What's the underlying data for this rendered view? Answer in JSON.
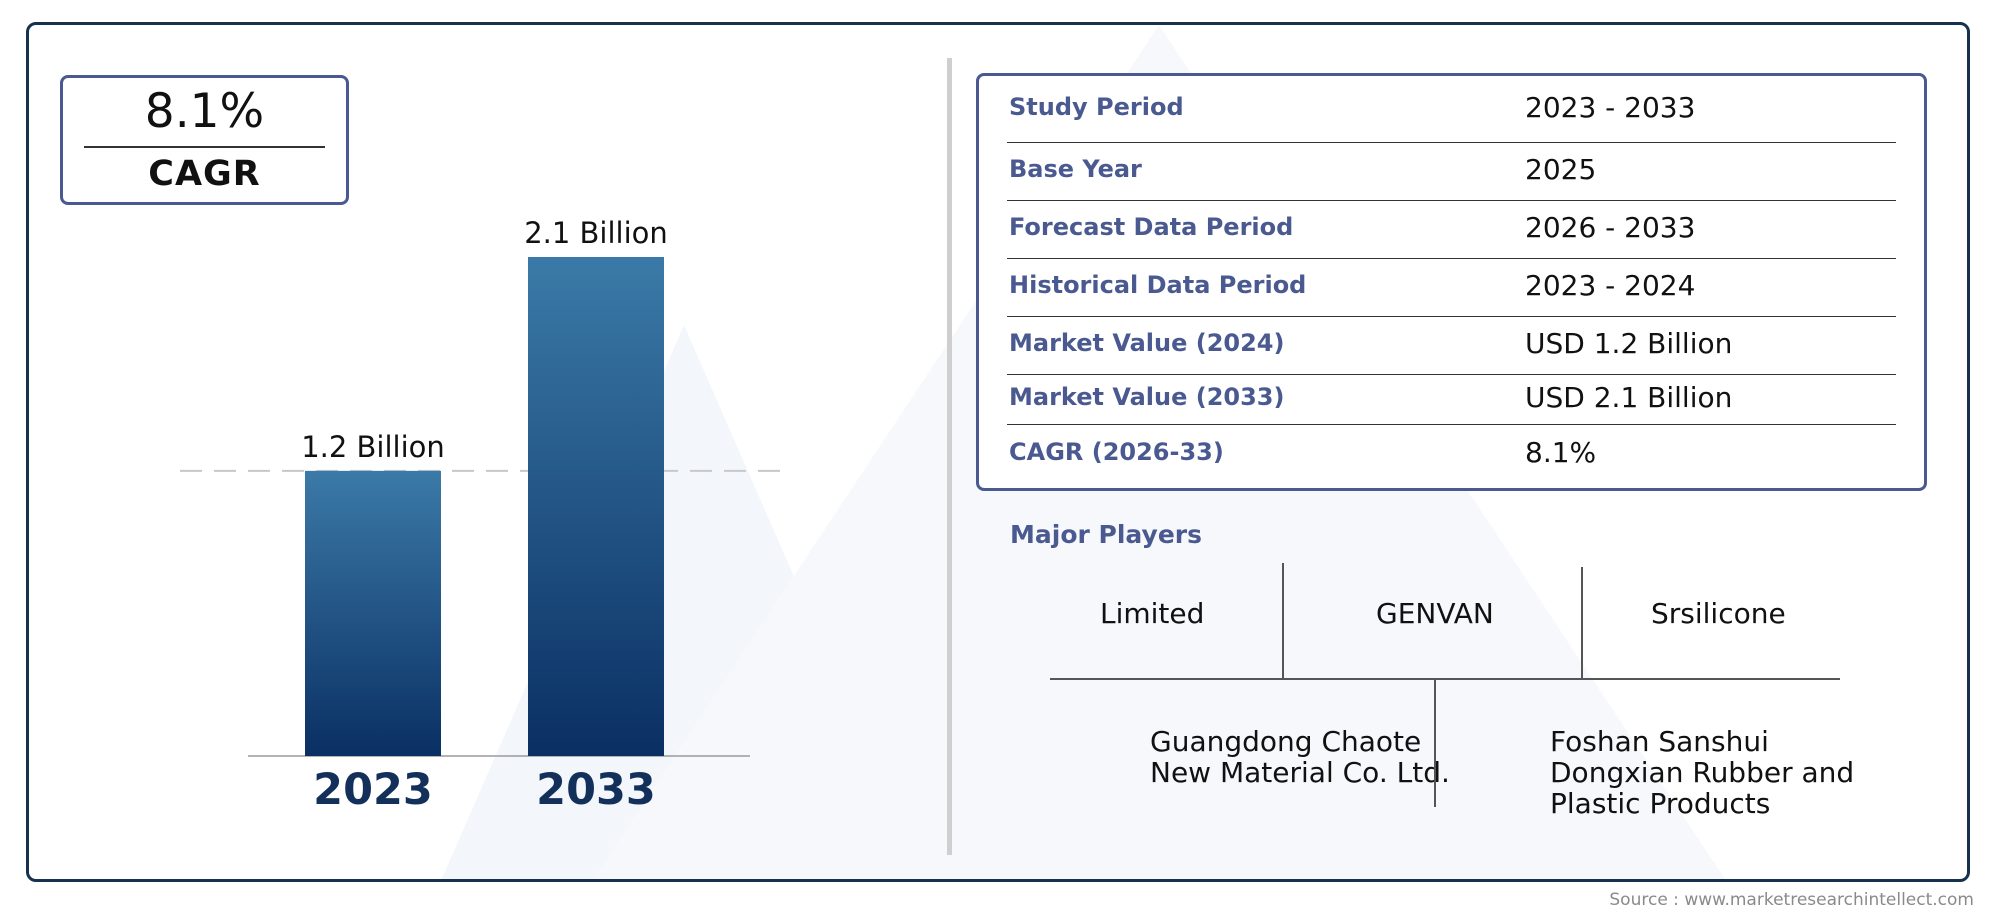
{
  "cagr_box": {
    "value": "8.1%",
    "label": "CAGR"
  },
  "chart_data": {
    "type": "bar",
    "categories": [
      "2023",
      "2033"
    ],
    "values": [
      1.2,
      2.1
    ],
    "value_labels": [
      "1.2 Billion",
      "2.1 Billion"
    ],
    "title": "",
    "xlabel": "",
    "ylabel": "",
    "ylim": [
      0,
      2.1
    ],
    "grid": false,
    "reference_line_at": 1.2,
    "colors": {
      "bar_top": "#3b7aa8",
      "bar_bottom": "#0a2f63",
      "year": "#13305a"
    }
  },
  "info_table": {
    "rows": [
      {
        "label": "Study Period",
        "value": "2023 - 2033"
      },
      {
        "label": "Base Year",
        "value": "2025"
      },
      {
        "label": "Forecast Data Period",
        "value": "2026 - 2033"
      },
      {
        "label": "Historical Data Period",
        "value": "2023 - 2024"
      },
      {
        "label": "Market Value (2024)",
        "value": "USD 1.2 Billion"
      },
      {
        "label": "Market Value (2033)",
        "value": "USD 2.1 Billion"
      },
      {
        "label": "CAGR (2026-33)",
        "value": "8.1%"
      }
    ]
  },
  "players": {
    "title": "Major Players",
    "top": [
      "Limited",
      "GENVAN",
      "Srsilicone"
    ],
    "bottom": [
      "Guangdong Chaote New Material Co. Ltd.",
      "Foshan Sanshui Dongxian Rubber and Plastic Products"
    ]
  },
  "source": "Source : www.marketresearchintellect.com",
  "colors": {
    "frame": "#16324f",
    "accent": "#4a5a91"
  }
}
